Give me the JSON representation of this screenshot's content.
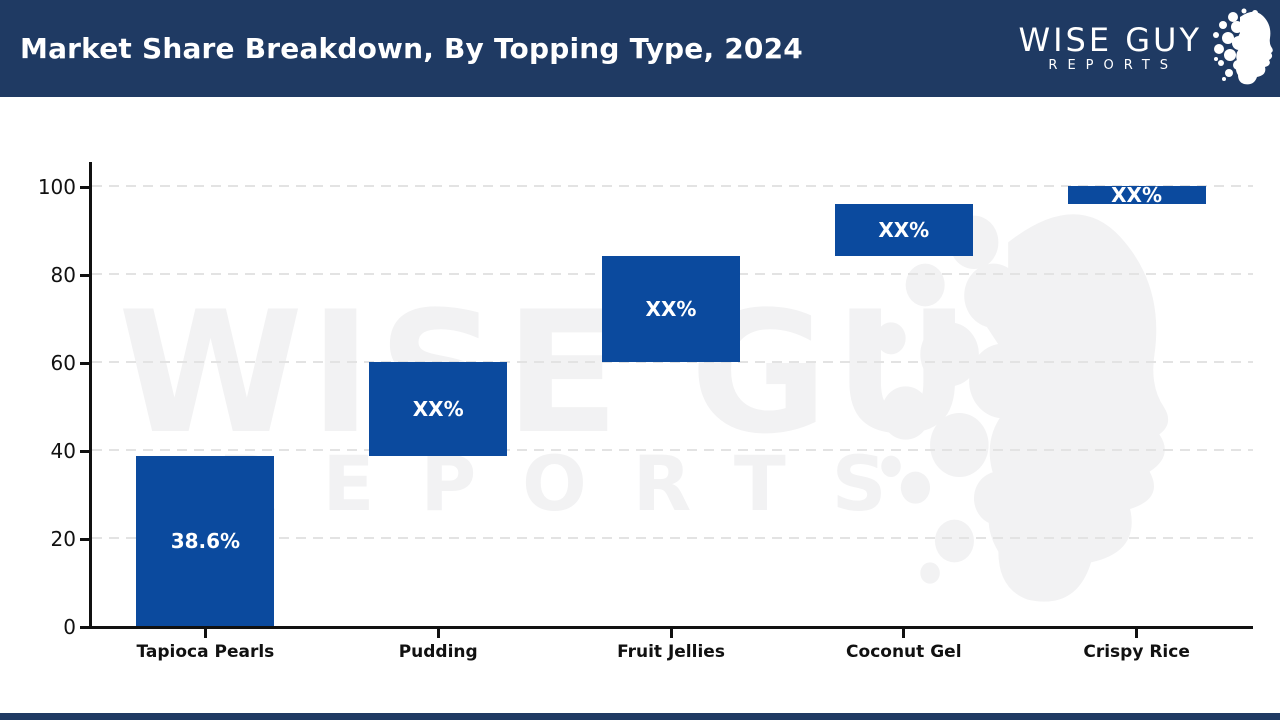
{
  "header": {
    "title": "Market Share Breakdown, By Topping Type, 2024",
    "logo": {
      "line1": "WISE GUY",
      "line2": "REPORTS"
    }
  },
  "watermark": {
    "line1": "WISE GUY",
    "line2": "REPORTS"
  },
  "colors": {
    "header_bg": "#1f3a63",
    "bar": "#0b4a9e",
    "grid": "#e3e3e3",
    "axis": "#111111",
    "watermark": "#f2f2f3",
    "bar_label": "#ffffff"
  },
  "chart_data": {
    "type": "bar",
    "subtype": "waterfall",
    "title": "Market Share Breakdown, By Topping Type, 2024",
    "xlabel": "",
    "ylabel": "",
    "categories": [
      "Tapioca Pearls",
      "Pudding",
      "Fruit Jellies",
      "Coconut Gel",
      "Crispy Rice"
    ],
    "bars": [
      {
        "category": "Tapioca Pearls",
        "start": 0,
        "end": 38.6,
        "label": "38.6%"
      },
      {
        "category": "Pudding",
        "start": 38.6,
        "end": 60,
        "label": "XX%"
      },
      {
        "category": "Fruit Jellies",
        "start": 60,
        "end": 84,
        "label": "XX%"
      },
      {
        "category": "Coconut Gel",
        "start": 84,
        "end": 96,
        "label": "XX%"
      },
      {
        "category": "Crispy Rice",
        "start": 96,
        "end": 100,
        "label": "XX%"
      }
    ],
    "yticks": [
      0,
      20,
      40,
      60,
      80,
      100
    ],
    "ylim": [
      0,
      105.5
    ],
    "grid": "horizontal-dashed",
    "legend": "none"
  }
}
